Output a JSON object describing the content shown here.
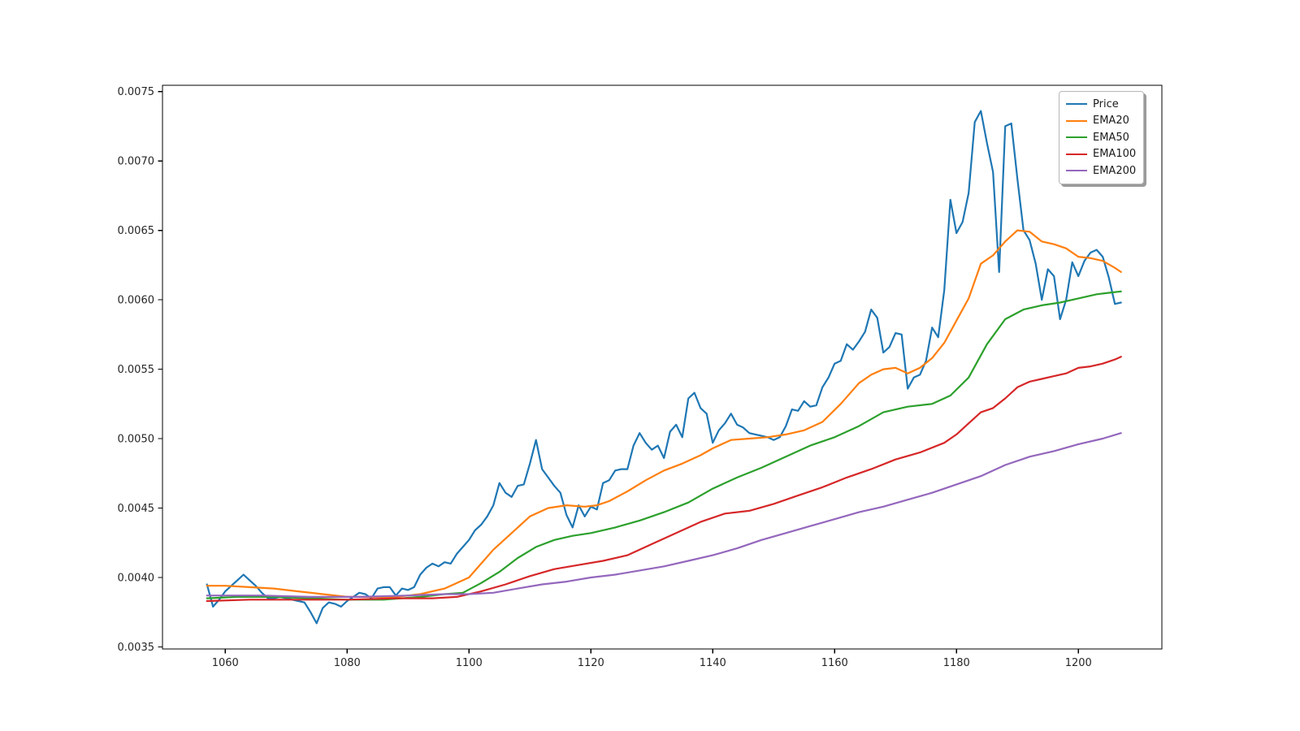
{
  "chart_data": {
    "type": "line",
    "title": "",
    "xlabel": "",
    "ylabel": "",
    "grid": false,
    "background": "#ffffff",
    "spine_color": "#000000",
    "legend_position": "upper right",
    "xlim": [
      1049.7,
      1213.7
    ],
    "ylim": [
      0.003485,
      0.007545
    ],
    "x_ticks": [
      1060,
      1080,
      1100,
      1120,
      1140,
      1160,
      1180,
      1200
    ],
    "x_tick_labels": [
      "1060",
      "1080",
      "1100",
      "1120",
      "1140",
      "1160",
      "1180",
      "1200"
    ],
    "y_ticks": [
      0.0035,
      0.004,
      0.0045,
      0.005,
      0.0055,
      0.006,
      0.0065,
      0.007,
      0.0075
    ],
    "y_tick_labels": [
      "0.0035",
      "0.0040",
      "0.0045",
      "0.0050",
      "0.0055",
      "0.0060",
      "0.0065",
      "0.0070",
      "0.0075"
    ],
    "series": [
      {
        "name": "Price",
        "color": "#1f77b4",
        "x_start": 1057,
        "x_step": 1,
        "values": [
          0.00395,
          0.00379,
          0.00384,
          0.0039,
          0.00394,
          0.00398,
          0.00402,
          0.00398,
          0.00394,
          0.00389,
          0.00385,
          0.00385,
          0.00386,
          0.00385,
          0.00384,
          0.00383,
          0.00382,
          0.00375,
          0.00367,
          0.00378,
          0.00382,
          0.00381,
          0.00379,
          0.00383,
          0.00386,
          0.00389,
          0.00388,
          0.00385,
          0.00392,
          0.00393,
          0.00393,
          0.00387,
          0.00392,
          0.00391,
          0.00393,
          0.00402,
          0.00407,
          0.0041,
          0.00408,
          0.00411,
          0.0041,
          0.00417,
          0.00422,
          0.00427,
          0.00434,
          0.00438,
          0.00444,
          0.00452,
          0.00468,
          0.00461,
          0.00458,
          0.00466,
          0.00467,
          0.00482,
          0.00499,
          0.00478,
          0.00472,
          0.00466,
          0.00461,
          0.00445,
          0.00436,
          0.00452,
          0.00444,
          0.00451,
          0.00449,
          0.00468,
          0.0047,
          0.00477,
          0.00478,
          0.00478,
          0.00495,
          0.00504,
          0.00497,
          0.00492,
          0.00495,
          0.00486,
          0.00505,
          0.0051,
          0.00501,
          0.00529,
          0.00533,
          0.00522,
          0.00518,
          0.00497,
          0.00506,
          0.00511,
          0.00518,
          0.0051,
          0.00508,
          0.00504,
          0.00503,
          0.00502,
          0.00501,
          0.00499,
          0.00501,
          0.00509,
          0.00521,
          0.0052,
          0.00527,
          0.00523,
          0.00524,
          0.00537,
          0.00544,
          0.00554,
          0.00556,
          0.00568,
          0.00564,
          0.0057,
          0.00577,
          0.00593,
          0.00587,
          0.00562,
          0.00566,
          0.00576,
          0.00575,
          0.00536,
          0.00544,
          0.00546,
          0.00556,
          0.0058,
          0.00573,
          0.00607,
          0.00672,
          0.00648,
          0.00656,
          0.00677,
          0.00728,
          0.00736,
          0.00713,
          0.00692,
          0.0062,
          0.00725,
          0.00727,
          0.00687,
          0.0065,
          0.00643,
          0.00626,
          0.006,
          0.00622,
          0.00617,
          0.00586,
          0.006,
          0.00627,
          0.00617,
          0.00628,
          0.00634,
          0.00636,
          0.00631,
          0.00616,
          0.00597,
          0.00598
        ]
      },
      {
        "name": "EMA20",
        "color": "#ff7f0e",
        "x": [
          1057,
          1060,
          1064,
          1068,
          1072,
          1076,
          1080,
          1084,
          1088,
          1092,
          1096,
          1100,
          1102,
          1104,
          1107,
          1110,
          1113,
          1116,
          1119,
          1121,
          1123,
          1126,
          1129,
          1132,
          1135,
          1138,
          1140,
          1143,
          1146,
          1149,
          1152,
          1155,
          1158,
          1161,
          1164,
          1166,
          1168,
          1170,
          1172,
          1174,
          1176,
          1178,
          1180,
          1182,
          1184,
          1186,
          1188,
          1190,
          1192,
          1194,
          1196,
          1198,
          1200,
          1202,
          1204,
          1206,
          1207
        ],
        "values": [
          0.00394,
          0.00394,
          0.00393,
          0.00392,
          0.0039,
          0.00388,
          0.00386,
          0.00386,
          0.00386,
          0.00388,
          0.00392,
          0.004,
          0.0041,
          0.0042,
          0.00432,
          0.00444,
          0.0045,
          0.00452,
          0.00451,
          0.00452,
          0.00455,
          0.00462,
          0.0047,
          0.00477,
          0.00482,
          0.00488,
          0.00493,
          0.00499,
          0.005,
          0.00501,
          0.00503,
          0.00506,
          0.00512,
          0.00525,
          0.0054,
          0.00546,
          0.0055,
          0.00551,
          0.00547,
          0.00551,
          0.00558,
          0.00569,
          0.00585,
          0.00601,
          0.00626,
          0.00632,
          0.00642,
          0.0065,
          0.00649,
          0.00642,
          0.0064,
          0.00637,
          0.00631,
          0.0063,
          0.00628,
          0.00623,
          0.0062
        ]
      },
      {
        "name": "EMA50",
        "color": "#2ca02c",
        "x": [
          1057,
          1062,
          1068,
          1074,
          1080,
          1086,
          1092,
          1096,
          1099,
          1102,
          1105,
          1108,
          1111,
          1114,
          1117,
          1120,
          1124,
          1128,
          1132,
          1136,
          1140,
          1144,
          1148,
          1152,
          1156,
          1160,
          1164,
          1168,
          1172,
          1176,
          1179,
          1182,
          1185,
          1188,
          1191,
          1194,
          1197,
          1200,
          1203,
          1205,
          1207
        ],
        "values": [
          0.00385,
          0.00386,
          0.00386,
          0.00385,
          0.00384,
          0.00384,
          0.00386,
          0.00388,
          0.00389,
          0.00396,
          0.00404,
          0.00414,
          0.00422,
          0.00427,
          0.0043,
          0.00432,
          0.00436,
          0.00441,
          0.00447,
          0.00454,
          0.00464,
          0.00472,
          0.00479,
          0.00487,
          0.00495,
          0.00501,
          0.00509,
          0.00519,
          0.00523,
          0.00525,
          0.00531,
          0.00544,
          0.00568,
          0.00586,
          0.00593,
          0.00596,
          0.00598,
          0.00601,
          0.00604,
          0.00605,
          0.00606
        ]
      },
      {
        "name": "EMA100",
        "color": "#d62728",
        "x": [
          1057,
          1064,
          1072,
          1080,
          1088,
          1094,
          1098,
          1102,
          1106,
          1110,
          1114,
          1118,
          1122,
          1126,
          1130,
          1134,
          1138,
          1142,
          1146,
          1150,
          1154,
          1158,
          1162,
          1166,
          1170,
          1174,
          1178,
          1180,
          1182,
          1184,
          1186,
          1188,
          1190,
          1192,
          1194,
          1196,
          1198,
          1200,
          1202,
          1204,
          1206,
          1207
        ],
        "values": [
          0.00383,
          0.00384,
          0.00384,
          0.00384,
          0.00385,
          0.00385,
          0.00386,
          0.0039,
          0.00395,
          0.00401,
          0.00406,
          0.00409,
          0.00412,
          0.00416,
          0.00424,
          0.00432,
          0.0044,
          0.00446,
          0.00448,
          0.00453,
          0.00459,
          0.00465,
          0.00472,
          0.00478,
          0.00485,
          0.0049,
          0.00497,
          0.00503,
          0.00511,
          0.00519,
          0.00522,
          0.00529,
          0.00537,
          0.00541,
          0.00543,
          0.00545,
          0.00547,
          0.00551,
          0.00552,
          0.00554,
          0.00557,
          0.00559
        ]
      },
      {
        "name": "EMA200",
        "color": "#9467bd",
        "x": [
          1057,
          1066,
          1074,
          1082,
          1090,
          1096,
          1100,
          1104,
          1108,
          1112,
          1116,
          1120,
          1124,
          1128,
          1132,
          1136,
          1140,
          1144,
          1148,
          1152,
          1156,
          1160,
          1164,
          1168,
          1172,
          1176,
          1180,
          1184,
          1188,
          1192,
          1196,
          1200,
          1204,
          1207
        ],
        "values": [
          0.00387,
          0.00387,
          0.00386,
          0.00386,
          0.00387,
          0.00388,
          0.00388,
          0.00389,
          0.00392,
          0.00395,
          0.00397,
          0.004,
          0.00402,
          0.00405,
          0.00408,
          0.00412,
          0.00416,
          0.00421,
          0.00427,
          0.00432,
          0.00437,
          0.00442,
          0.00447,
          0.00451,
          0.00456,
          0.00461,
          0.00467,
          0.00473,
          0.00481,
          0.00487,
          0.00491,
          0.00496,
          0.005,
          0.00504
        ]
      }
    ]
  },
  "legend": {
    "items": [
      "Price",
      "EMA20",
      "EMA50",
      "EMA100",
      "EMA200"
    ]
  }
}
